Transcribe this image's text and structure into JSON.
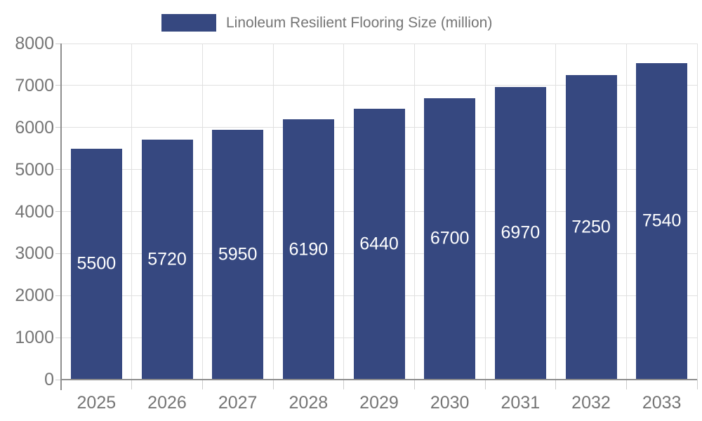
{
  "chart_data": {
    "type": "bar",
    "title": "",
    "legend": "Linoleum Resilient Flooring Size (million)",
    "legend_position": "top",
    "categories": [
      "2025",
      "2026",
      "2027",
      "2028",
      "2029",
      "2030",
      "2031",
      "2032",
      "2033"
    ],
    "series": [
      {
        "name": "Linoleum Resilient Flooring Size (million)",
        "values": [
          5500,
          5720,
          5950,
          6190,
          6440,
          6700,
          6970,
          7250,
          7540
        ]
      }
    ],
    "bar_labels": [
      5500,
      5720,
      5950,
      6190,
      6440,
      6700,
      6970,
      7250,
      7540
    ],
    "xlabel": "",
    "ylabel": "",
    "ylim": [
      0,
      8000
    ],
    "yticks": [
      0,
      1000,
      2000,
      3000,
      4000,
      5000,
      6000,
      7000,
      8000
    ],
    "grid": true,
    "colors": {
      "bar": "#364880",
      "grid": "#e0e0e0",
      "axis": "#8e8e8e",
      "tick_text": "#757575",
      "value_text": "#ffffff",
      "background": "#ffffff"
    }
  }
}
